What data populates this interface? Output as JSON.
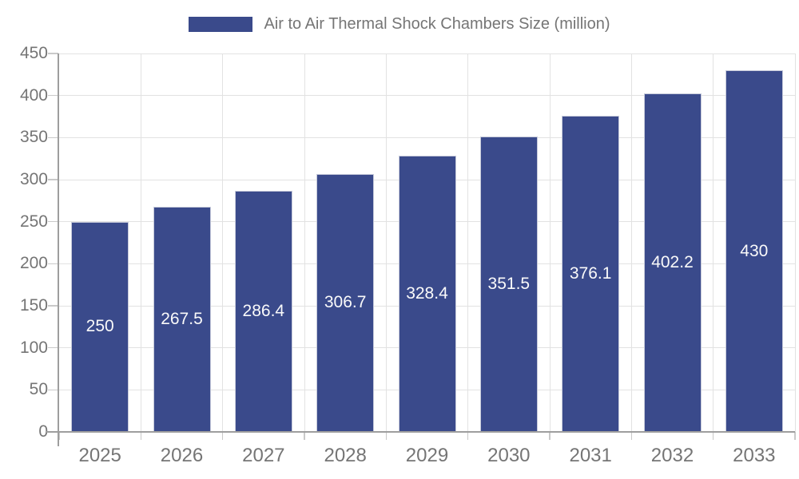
{
  "colors": {
    "bar": "#3a4a8b",
    "bar_edge": "#c6cada",
    "grid": "#e2e2e2",
    "axis": "#9e9e9e",
    "tick": "#c9c9c9",
    "axis_text": "#757575",
    "value_text": "#fafafa",
    "background": "#ffffff"
  },
  "chart_data": {
    "type": "bar",
    "title": "Air to Air Thermal Shock Chambers Size (million)",
    "categories": [
      "2025",
      "2026",
      "2027",
      "2028",
      "2029",
      "2030",
      "2031",
      "2032",
      "2033"
    ],
    "values": [
      250,
      267.5,
      286.4,
      306.7,
      328.4,
      351.5,
      376.1,
      402.2,
      430
    ],
    "value_labels": [
      "250",
      "267.5",
      "286.4",
      "306.7",
      "328.4",
      "351.5",
      "376.1",
      "402.2",
      "430"
    ],
    "xlabel": "",
    "ylabel": "",
    "ylim": [
      0,
      450
    ],
    "yticks": [
      0,
      50,
      100,
      150,
      200,
      250,
      300,
      350,
      400,
      450
    ],
    "grid": true,
    "legend_position": "top",
    "value_label_position": "inside-center"
  }
}
